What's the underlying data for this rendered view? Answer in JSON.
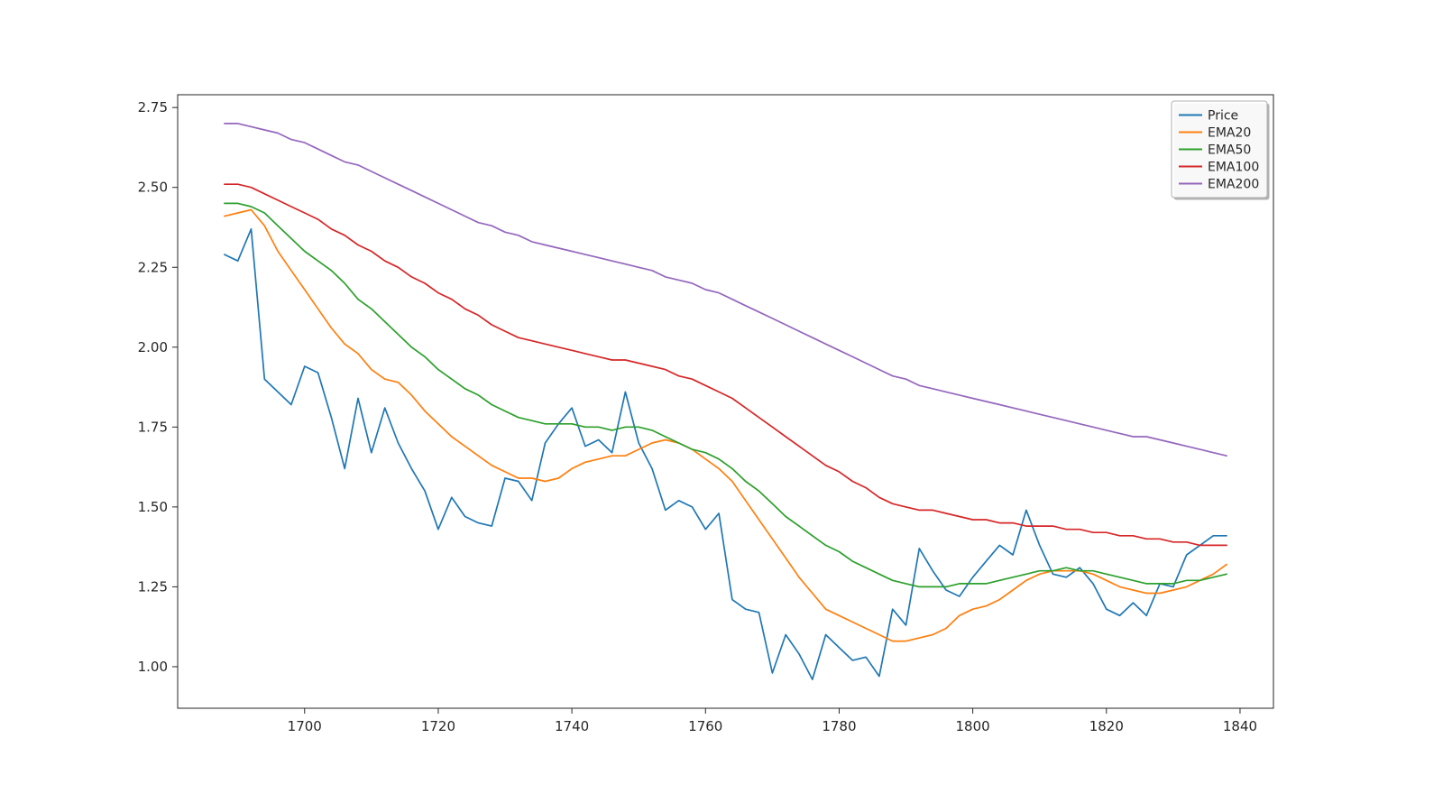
{
  "chart_data": {
    "type": "line",
    "title": "",
    "xlabel": "",
    "ylabel": "",
    "xlim": [
      1681,
      1845
    ],
    "ylim": [
      0.87,
      2.79
    ],
    "xticks": [
      1700,
      1720,
      1740,
      1760,
      1780,
      1800,
      1820,
      1840
    ],
    "yticks": [
      1.0,
      1.25,
      1.5,
      1.75,
      2.0,
      2.25,
      2.5,
      2.75
    ],
    "grid": false,
    "legend_position": "upper-right",
    "x": [
      1688,
      1690,
      1692,
      1694,
      1696,
      1698,
      1700,
      1702,
      1704,
      1706,
      1708,
      1710,
      1712,
      1714,
      1716,
      1718,
      1720,
      1722,
      1724,
      1726,
      1728,
      1730,
      1732,
      1734,
      1736,
      1738,
      1740,
      1742,
      1744,
      1746,
      1748,
      1750,
      1752,
      1754,
      1756,
      1758,
      1760,
      1762,
      1764,
      1766,
      1768,
      1770,
      1772,
      1774,
      1776,
      1778,
      1780,
      1782,
      1784,
      1786,
      1788,
      1790,
      1792,
      1794,
      1796,
      1798,
      1800,
      1802,
      1804,
      1806,
      1808,
      1810,
      1812,
      1814,
      1816,
      1818,
      1820,
      1822,
      1824,
      1826,
      1828,
      1830,
      1832,
      1834,
      1836,
      1838
    ],
    "series": [
      {
        "name": "Price",
        "color": "#1f77b4",
        "values": [
          2.29,
          2.27,
          2.37,
          1.9,
          1.86,
          1.82,
          1.94,
          1.92,
          1.78,
          1.62,
          1.84,
          1.67,
          1.81,
          1.7,
          1.62,
          1.55,
          1.43,
          1.53,
          1.47,
          1.45,
          1.44,
          1.59,
          1.58,
          1.52,
          1.7,
          1.76,
          1.81,
          1.69,
          1.71,
          1.67,
          1.86,
          1.7,
          1.62,
          1.49,
          1.52,
          1.5,
          1.43,
          1.48,
          1.21,
          1.18,
          1.17,
          0.98,
          1.1,
          1.04,
          0.96,
          1.1,
          1.06,
          1.02,
          1.03,
          0.97,
          1.18,
          1.13,
          1.37,
          1.3,
          1.24,
          1.22,
          1.28,
          1.33,
          1.38,
          1.35,
          1.49,
          1.38,
          1.29,
          1.28,
          1.31,
          1.26,
          1.18,
          1.16,
          1.2,
          1.16,
          1.26,
          1.25,
          1.35,
          1.38,
          1.41,
          1.41
        ]
      },
      {
        "name": "EMA20",
        "color": "#ff7f0e",
        "values": [
          2.41,
          2.42,
          2.43,
          2.38,
          2.3,
          2.24,
          2.18,
          2.12,
          2.06,
          2.01,
          1.98,
          1.93,
          1.9,
          1.89,
          1.85,
          1.8,
          1.76,
          1.72,
          1.69,
          1.66,
          1.63,
          1.61,
          1.59,
          1.59,
          1.58,
          1.59,
          1.62,
          1.64,
          1.65,
          1.66,
          1.66,
          1.68,
          1.7,
          1.71,
          1.7,
          1.68,
          1.65,
          1.62,
          1.58,
          1.52,
          1.46,
          1.4,
          1.34,
          1.28,
          1.23,
          1.18,
          1.16,
          1.14,
          1.12,
          1.1,
          1.08,
          1.08,
          1.09,
          1.1,
          1.12,
          1.16,
          1.18,
          1.19,
          1.21,
          1.24,
          1.27,
          1.29,
          1.3,
          1.3,
          1.3,
          1.29,
          1.27,
          1.25,
          1.24,
          1.23,
          1.23,
          1.24,
          1.25,
          1.27,
          1.29,
          1.32
        ]
      },
      {
        "name": "EMA50",
        "color": "#2ca02c",
        "values": [
          2.45,
          2.45,
          2.44,
          2.42,
          2.38,
          2.34,
          2.3,
          2.27,
          2.24,
          2.2,
          2.15,
          2.12,
          2.08,
          2.04,
          2.0,
          1.97,
          1.93,
          1.9,
          1.87,
          1.85,
          1.82,
          1.8,
          1.78,
          1.77,
          1.76,
          1.76,
          1.76,
          1.75,
          1.75,
          1.74,
          1.75,
          1.75,
          1.74,
          1.72,
          1.7,
          1.68,
          1.67,
          1.65,
          1.62,
          1.58,
          1.55,
          1.51,
          1.47,
          1.44,
          1.41,
          1.38,
          1.36,
          1.33,
          1.31,
          1.29,
          1.27,
          1.26,
          1.25,
          1.25,
          1.25,
          1.26,
          1.26,
          1.26,
          1.27,
          1.28,
          1.29,
          1.3,
          1.3,
          1.31,
          1.3,
          1.3,
          1.29,
          1.28,
          1.27,
          1.26,
          1.26,
          1.26,
          1.27,
          1.27,
          1.28,
          1.29
        ]
      },
      {
        "name": "EMA100",
        "color": "#d62728",
        "values": [
          2.51,
          2.51,
          2.5,
          2.48,
          2.46,
          2.44,
          2.42,
          2.4,
          2.37,
          2.35,
          2.32,
          2.3,
          2.27,
          2.25,
          2.22,
          2.2,
          2.17,
          2.15,
          2.12,
          2.1,
          2.07,
          2.05,
          2.03,
          2.02,
          2.01,
          2.0,
          1.99,
          1.98,
          1.97,
          1.96,
          1.96,
          1.95,
          1.94,
          1.93,
          1.91,
          1.9,
          1.88,
          1.86,
          1.84,
          1.81,
          1.78,
          1.75,
          1.72,
          1.69,
          1.66,
          1.63,
          1.61,
          1.58,
          1.56,
          1.53,
          1.51,
          1.5,
          1.49,
          1.49,
          1.48,
          1.47,
          1.46,
          1.46,
          1.45,
          1.45,
          1.44,
          1.44,
          1.44,
          1.43,
          1.43,
          1.42,
          1.42,
          1.41,
          1.41,
          1.4,
          1.4,
          1.39,
          1.39,
          1.38,
          1.38,
          1.38
        ]
      },
      {
        "name": "EMA200",
        "color": "#9467bd",
        "values": [
          2.7,
          2.7,
          2.69,
          2.68,
          2.67,
          2.65,
          2.64,
          2.62,
          2.6,
          2.58,
          2.57,
          2.55,
          2.53,
          2.51,
          2.49,
          2.47,
          2.45,
          2.43,
          2.41,
          2.39,
          2.38,
          2.36,
          2.35,
          2.33,
          2.32,
          2.31,
          2.3,
          2.29,
          2.28,
          2.27,
          2.26,
          2.25,
          2.24,
          2.22,
          2.21,
          2.2,
          2.18,
          2.17,
          2.15,
          2.13,
          2.11,
          2.09,
          2.07,
          2.05,
          2.03,
          2.01,
          1.99,
          1.97,
          1.95,
          1.93,
          1.91,
          1.9,
          1.88,
          1.87,
          1.86,
          1.85,
          1.84,
          1.83,
          1.82,
          1.81,
          1.8,
          1.79,
          1.78,
          1.77,
          1.76,
          1.75,
          1.74,
          1.73,
          1.72,
          1.72,
          1.71,
          1.7,
          1.69,
          1.68,
          1.67,
          1.66
        ]
      }
    ],
    "legend": [
      "Price",
      "EMA20",
      "EMA50",
      "EMA100",
      "EMA200"
    ]
  },
  "colors": {
    "background": "#ffffff",
    "axis": "#262626",
    "tick_text": "#262626",
    "legend_border": "#b0b0b0",
    "legend_bg": "#ffffff"
  }
}
